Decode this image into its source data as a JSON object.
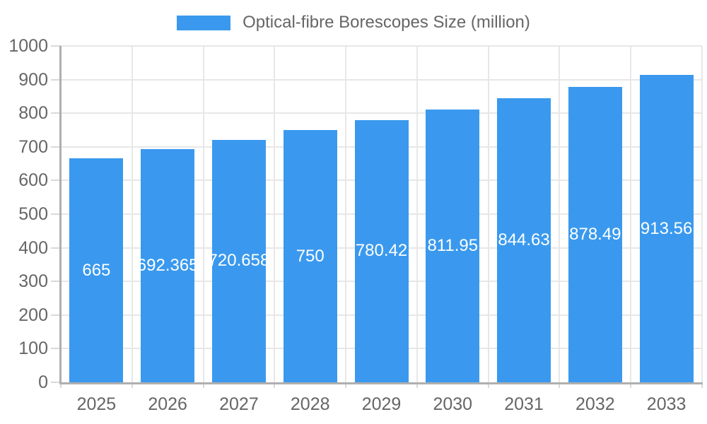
{
  "legend": {
    "label": "Optical-fibre Borescopes Size (million)"
  },
  "chart_data": {
    "type": "bar",
    "title": "Optical-fibre Borescopes Size (million)",
    "categories": [
      "2025",
      "2026",
      "2027",
      "2028",
      "2029",
      "2030",
      "2031",
      "2032",
      "2033"
    ],
    "values": [
      665,
      692.365,
      720.658,
      750,
      780.42,
      811.95,
      844.63,
      878.49,
      913.56
    ],
    "value_labels": [
      "665",
      "692.365",
      "720.658",
      "750",
      "780.42",
      "811.95",
      "844.63",
      "878.49",
      "913.56"
    ],
    "xlabel": "",
    "ylabel": "",
    "ylim": [
      0,
      1000
    ],
    "ytick_interval": 100,
    "yticks": [
      0,
      100,
      200,
      300,
      400,
      500,
      600,
      700,
      800,
      900,
      1000
    ],
    "grid": true,
    "legend_position": "top",
    "colors": {
      "bar": "#3A99EE",
      "bar_label_text": "#FFFFFF",
      "axis_text": "#666666",
      "grid_line": "#E7E7E7",
      "tick_mark": "#D9D9D9",
      "axis_line": "#AFAFAF",
      "background": "#FFFFFF"
    }
  }
}
